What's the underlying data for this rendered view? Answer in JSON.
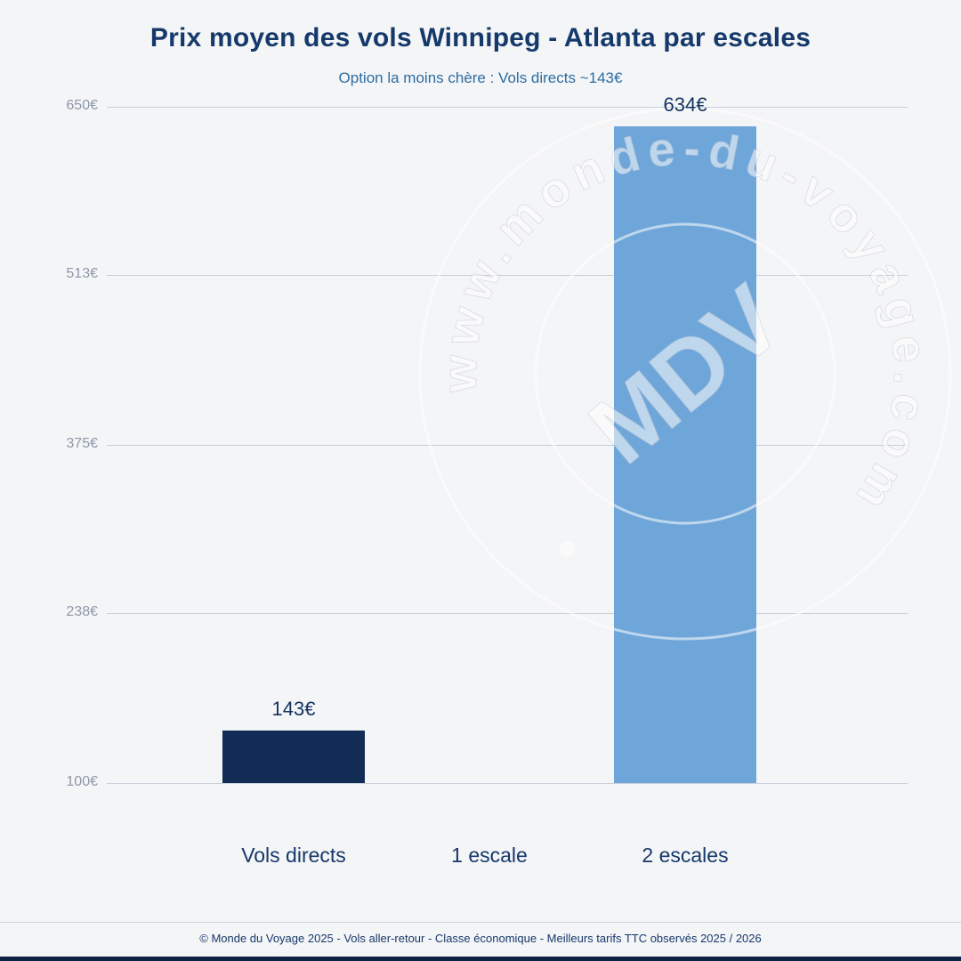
{
  "chart_data": {
    "type": "bar",
    "title": "Prix moyen des vols Winnipeg - Atlanta par escales",
    "subtitle": "Option la moins chère : Vols directs ~143€",
    "categories": [
      "Vols directs",
      "1 escale",
      "2 escales"
    ],
    "values": [
      143,
      null,
      634
    ],
    "value_labels": [
      "143€",
      "",
      "634€"
    ],
    "y_ticks": [
      "650€",
      "513€",
      "375€",
      "238€",
      "100€"
    ],
    "y_tick_values": [
      650,
      513,
      375,
      238,
      100
    ],
    "ylim": [
      100,
      650
    ],
    "xlabel": "",
    "ylabel": "",
    "grid": true,
    "legend": false,
    "bar_colors": [
      "#122c55",
      null,
      "#6fa6d9"
    ]
  },
  "watermark": {
    "circle_text": "www.monde-du-voyage.com",
    "center_text": "MDV"
  },
  "footer": {
    "text": "© Monde du Voyage 2025 - Vols aller-retour - Classe économique - Meilleurs tarifs TTC observés 2025 / 2026"
  },
  "colors": {
    "background": "#f4f5f7",
    "title": "#15396b",
    "subtitle": "#2d6ca3",
    "gridline": "#c8d0db",
    "tick_label": "#8d98a9",
    "bar_dark": "#122c55",
    "bar_light": "#6fa6d9",
    "bottom_strip": "#0c2346"
  }
}
